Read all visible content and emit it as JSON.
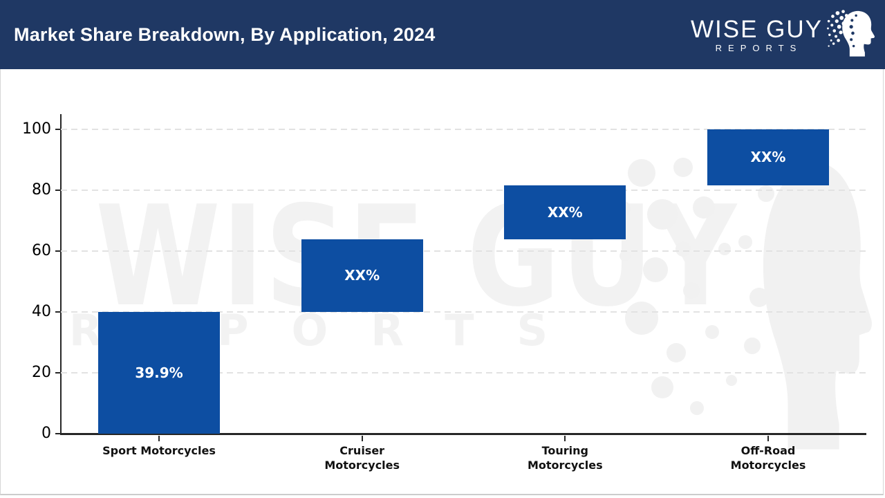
{
  "header": {
    "title": "Market Share Breakdown, By Application, 2024",
    "logo": {
      "line1": "WISE GUY",
      "line2": "REPORTS"
    }
  },
  "watermark": {
    "line1": "WISE GUY",
    "line2": "REPORTS"
  },
  "colors": {
    "header_bg": "#1f3864",
    "bar_blue": "#0d4ea2",
    "axis": "#262626",
    "gridline": "#e2e2e2",
    "watermark_gray": "#f2f2f2"
  },
  "chart_data": {
    "type": "bar",
    "subtype": "floating-waterfall",
    "title": "Market Share Breakdown, By Application, 2024",
    "xlabel": "",
    "ylabel": "",
    "ylim": [
      0,
      100
    ],
    "yticks": [
      0,
      20,
      40,
      60,
      80,
      100
    ],
    "grid": "horizontal-dashed",
    "legend": "none",
    "bar_color": "#0d4ea2",
    "categories": [
      "Sport Motorcycles",
      "Cruiser Motorcycles",
      "Touring Motorcycles",
      "Off-Road Motorcycles"
    ],
    "category_lines": [
      [
        "Sport Motorcycles"
      ],
      [
        "Cruiser",
        "Motorcycles"
      ],
      [
        "Touring",
        "Motorcycles"
      ],
      [
        "Off-Road",
        "Motorcycles"
      ]
    ],
    "bars": [
      {
        "category": "Sport Motorcycles",
        "start": 0,
        "end": 39.9,
        "value_estimate": 39.9,
        "label": "39.9%"
      },
      {
        "category": "Cruiser Motorcycles",
        "start": 39.9,
        "end": 63.9,
        "value_estimate": 24.0,
        "label": "XX%"
      },
      {
        "category": "Touring Motorcycles",
        "start": 63.9,
        "end": 81.4,
        "value_estimate": 17.5,
        "label": "XX%"
      },
      {
        "category": "Off-Road Motorcycles",
        "start": 81.4,
        "end": 100,
        "value_estimate": 18.6,
        "label": "XX%"
      }
    ]
  }
}
